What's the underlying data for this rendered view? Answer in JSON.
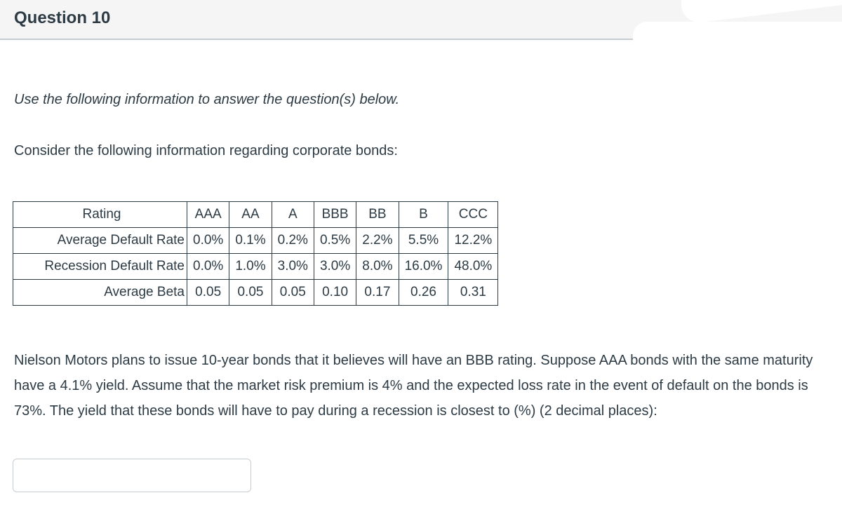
{
  "header": {
    "title": "Question 10"
  },
  "intro": {
    "instruction": "Use the following information to answer the question(s) below.",
    "lead_in": "Consider the following information regarding corporate bonds:"
  },
  "table": {
    "header_row": {
      "label": "Rating",
      "values": [
        "AAA",
        "AA",
        "A",
        "BBB",
        "BB",
        "B",
        "CCC"
      ]
    },
    "rows": [
      {
        "label": "Average Default Rate",
        "values": [
          "0.0%",
          "0.1%",
          "0.2%",
          "0.5%",
          "2.2%",
          "5.5%",
          "12.2%"
        ]
      },
      {
        "label": "Recession Default Rate",
        "values": [
          "0.0%",
          "1.0%",
          "3.0%",
          "3.0%",
          "8.0%",
          "16.0%",
          "48.0%"
        ]
      },
      {
        "label": "Average Beta",
        "values": [
          "0.05",
          "0.05",
          "0.05",
          "0.10",
          "0.17",
          "0.26",
          "0.31"
        ]
      }
    ]
  },
  "question": {
    "text": "Nielson Motors plans to issue 10-year bonds that it believes will have an BBB rating. Suppose AAA bonds with the same maturity have a 4.1% yield. Assume that the market risk premium is 4% and the expected loss rate in the event of default on the bonds is 73%. The yield that these bonds will have to pay during a recession is closest to (%) (2 decimal places):"
  },
  "answer_input": {
    "value": "",
    "placeholder": ""
  },
  "colors": {
    "text": "#2d3b45",
    "header_bg": "#f5f5f5",
    "divider": "#c6cdd2",
    "table_border": "#2d3b45",
    "input_border": "#c7cdd1"
  }
}
